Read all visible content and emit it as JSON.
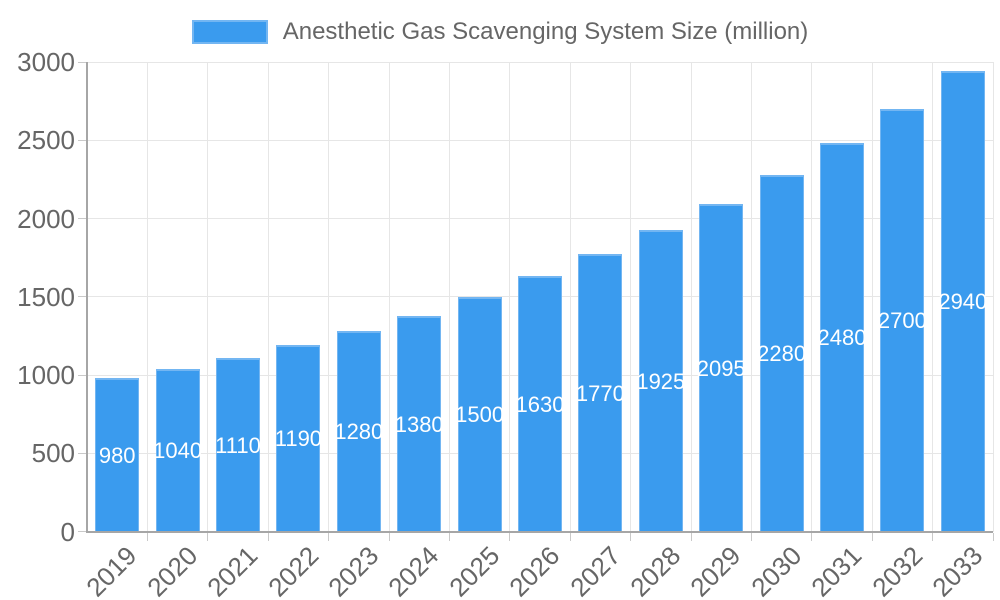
{
  "chart_data": {
    "type": "bar",
    "title": "Anesthetic Gas Scavenging System Size (million)",
    "categories": [
      "2019",
      "2020",
      "2021",
      "2022",
      "2023",
      "2024",
      "2025",
      "2026",
      "2027",
      "2028",
      "2029",
      "2030",
      "2031",
      "2032",
      "2033"
    ],
    "values": [
      980,
      1040,
      1110,
      1190,
      1280,
      1380,
      1500,
      1630,
      1770,
      1925,
      2095,
      2280,
      2480,
      2700,
      2940
    ],
    "xlabel": "",
    "ylabel": "",
    "ylim": [
      0,
      3000
    ],
    "yticks": [
      0,
      500,
      1000,
      1500,
      2000,
      2500,
      3000
    ],
    "grid": true,
    "legend_position": "top",
    "value_labels_shown": true,
    "colors": {
      "bar": "#3A9BEE",
      "bar_border": "#73B6F2",
      "value_label": "#FFFFFF",
      "axis_text": "#666666",
      "grid_line": "#E6E6E6",
      "axis_line": "#A6A6A6",
      "tick": "#C9C9C9"
    }
  }
}
